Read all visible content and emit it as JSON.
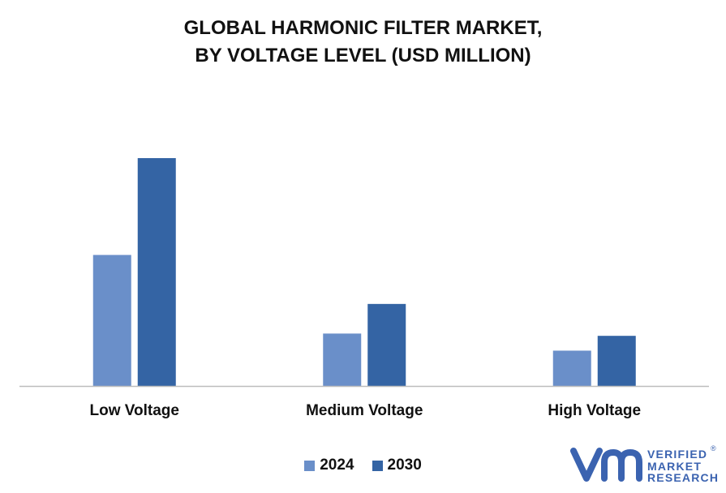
{
  "title_line1": "GLOBAL HARMONIC FILTER MARKET,",
  "title_line2": "BY VOLTAGE LEVEL (USD MILLION)",
  "colors": {
    "series_2024": "#6a8fc9",
    "series_2030": "#3464a4",
    "axis": "#bdbdbd",
    "logo": "#3b63b0"
  },
  "chart_data": {
    "type": "bar",
    "title": "GLOBAL HARMONIC FILTER MARKET, BY VOLTAGE LEVEL (USD MILLION)",
    "categories": [
      "Low Voltage",
      "Medium Voltage",
      "High Voltage"
    ],
    "series": [
      {
        "name": "2024",
        "values": [
          57.5,
          23.0,
          15.5
        ]
      },
      {
        "name": "2030",
        "values": [
          100,
          36.0,
          22.0
        ]
      }
    ],
    "ylim": [
      0,
      100
    ],
    "grid": false,
    "legend_position": "bottom"
  },
  "legend": [
    {
      "label": "2024",
      "color": "#6a8fc9"
    },
    {
      "label": "2030",
      "color": "#3464a4"
    }
  ],
  "logo": {
    "line1": "VERIFIED",
    "line2": "MARKET",
    "line3": "RESEARCH",
    "mark": "®",
    "icon": "vmr-logo-icon"
  }
}
